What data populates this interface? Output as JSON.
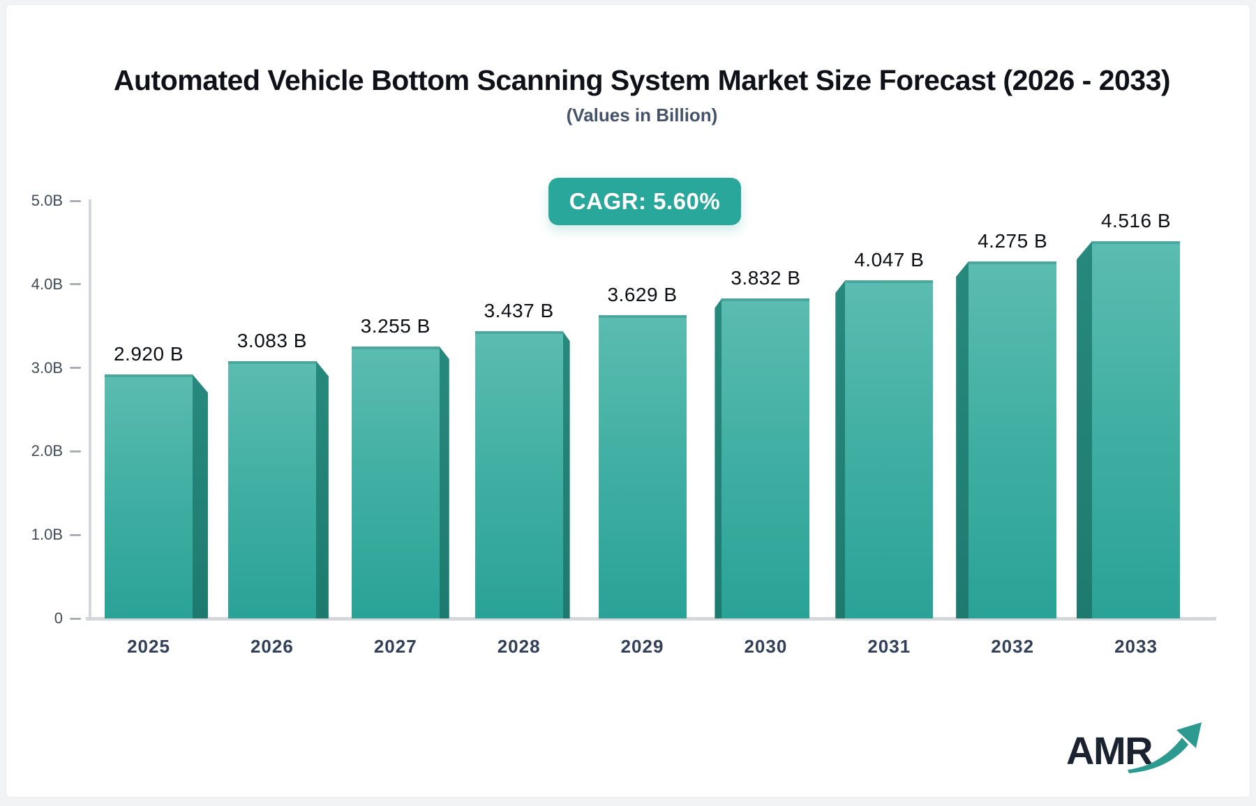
{
  "header": {
    "title": "Automated Vehicle Bottom Scanning System Market Size Forecast (2026 - 2033)",
    "subtitle": "(Values in Billion)"
  },
  "badge": {
    "label": "CAGR: 5.60%",
    "bg": "#2aa79b"
  },
  "logo": {
    "text": "AMR",
    "text_color": "#1b2330",
    "arrow_color": "#2d9a90"
  },
  "chart_data": {
    "type": "bar",
    "title": "Automated Vehicle Bottom Scanning System Market Size Forecast (2026 - 2033)",
    "subtitle": "(Values in Billion)",
    "cagr": "5.60%",
    "categories": [
      "2025",
      "2026",
      "2027",
      "2028",
      "2029",
      "2030",
      "2031",
      "2032",
      "2033"
    ],
    "values": [
      2.92,
      3.083,
      3.255,
      3.437,
      3.629,
      3.832,
      4.047,
      4.275,
      4.516
    ],
    "value_labels": [
      "2.920 B",
      "3.083 B",
      "3.255 B",
      "3.437 B",
      "3.629 B",
      "3.832 B",
      "4.047 B",
      "4.275 B",
      "4.516 B"
    ],
    "xlabel": "",
    "ylabel": "",
    "ylim": [
      0,
      5.0
    ],
    "ytick_values": [
      0,
      1,
      2,
      3,
      4,
      5
    ],
    "ytick_labels": [
      "0",
      "1.0B",
      "2.0B",
      "3.0B",
      "4.0B",
      "5.0B"
    ],
    "grid": false,
    "legend": "none",
    "colors": {
      "bar_top": "#5cbcb1",
      "bar_bottom": "#2aa296",
      "bar_side": "#1f8074"
    }
  }
}
